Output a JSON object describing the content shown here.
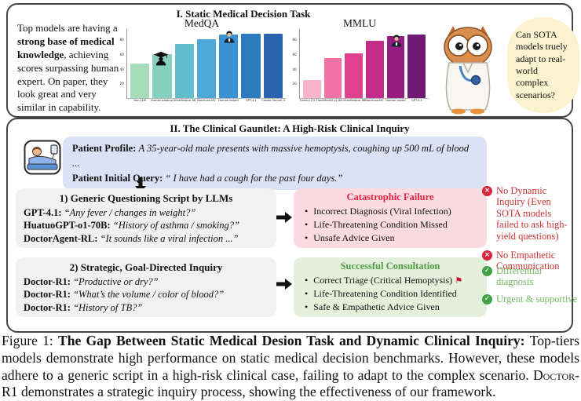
{
  "panel1": {
    "title": "I.  Static Medical Decision Task",
    "intro_pre": "Top models are having a ",
    "intro_bold": "strong base of medical knowledge",
    "intro_post": ", achieving scores surpassing human expert. On paper, they look great and very similar in capability.",
    "bubble_text": "Can SOTA models truely adapt to real-world complex scenarios?"
  },
  "chart_data": [
    {
      "type": "bar",
      "title": "MedQA",
      "categories": [
        "Non-LLM",
        "Human passing",
        "UltraMedical 8B",
        "Baichuan-M2",
        "Human expert",
        "GPT-4.1",
        "Claude Sonnet 4"
      ],
      "values": [
        48,
        60,
        75,
        81,
        87,
        88,
        89
      ],
      "colors": [
        "#a6dcb9",
        "#85d0bd",
        "#61bfcd",
        "#4ea9d8",
        "#3a92d2",
        "#2e7ac0",
        "#2a64ae"
      ],
      "ylim": [
        0,
        95
      ],
      "yticks": [
        20,
        40,
        60,
        80
      ],
      "xlabel": "",
      "ylabel": "",
      "legend": "none",
      "grid": false
    },
    {
      "type": "bar",
      "title": "MMLU",
      "categories": [
        "Gemini 2.5 Flash",
        "Med42-v2 8B",
        "UltraMedical 8B",
        "Baichuan-M2",
        "Human expert",
        "GPT-4.1"
      ],
      "values": [
        25,
        55,
        62,
        79,
        85,
        87
      ],
      "colors": [
        "#f8b4ca",
        "#f272a6",
        "#e0418f",
        "#c42c8a",
        "#951d82",
        "#6f1a75"
      ],
      "ylim": [
        0,
        95
      ],
      "yticks": [
        20,
        40,
        60,
        80
      ],
      "xlabel": "",
      "ylabel": "",
      "legend": "none",
      "grid": false
    }
  ],
  "panel2": {
    "title": "II.  The Clinical Gauntlet: A High-Risk Clinical Inquiry",
    "patient": {
      "profile_label": "Patient Profile: ",
      "profile_text": "A 35-year-old male presents with massive hemoptysis, coughing up 500 mL of blood ...",
      "query_label": "Patient Initial Query: ",
      "query_text": "“ I have had a cough for the past four days.”"
    },
    "box1": {
      "title": "1) Generic Questioning Script by LLMs",
      "lines": [
        {
          "speaker": "GPT-4.1: ",
          "quote": "“Any fever /  changes in weight?”"
        },
        {
          "speaker": "HuatuoGPT-o1-70B: ",
          "quote": "“History of asthma / smoking?”"
        },
        {
          "speaker": "DoctorAgent-RL: ",
          "quote": "“It sounds like a viral infection ...”"
        }
      ]
    },
    "box2": {
      "title": "2) Strategic, Goal-Directed Inquiry",
      "lines": [
        {
          "speaker": "Doctor-R1: ",
          "quote": "“Productive or dry?”"
        },
        {
          "speaker": "Doctor-R1: ",
          "quote": "“What’s the volume / color of blood?”"
        },
        {
          "speaker": "Doctor-R1: ",
          "quote": "“History of TB?”"
        }
      ]
    },
    "failure": {
      "title": "Catastrophic Failure",
      "bullets": [
        {
          "text": "Incorrect Diagnosis (Viral Infection)"
        },
        {
          "text": "Life-Threatening Condition Missed"
        },
        {
          "text": "Unsafe Advice Given"
        }
      ]
    },
    "success": {
      "title": "Successful Consultation",
      "bullets": [
        {
          "text": "Correct Triage (Critical Hemoptysis)",
          "flag": true
        },
        {
          "text": "Life-Threatening Condition Identified"
        },
        {
          "text": "Safe & Empathetic Advice Given"
        }
      ]
    },
    "negatives": [
      "No Dynamic Inquiry (Even SOTA models failed to ask high-yield questions)",
      "No Empathetic Communication"
    ],
    "positives": [
      "Differential diagnosis",
      "Urgent & supportive"
    ]
  },
  "caption": {
    "figure_label": "Figure 1: ",
    "title_bold": "The Gap Between Static Medical Desion Task and Dynamic Clinical Inquiry: ",
    "body1": "Top-tiers models demonstrate high performance on static medical decision benchmarks. However, these models adhere to a generic script in a high-risk clinical case, failing to adapt to the complex scenario. ",
    "doctor_name": "Doctor-R1",
    "body2": " demonstrates a strategic inquiry process, showing the effectiveness of our framework."
  }
}
